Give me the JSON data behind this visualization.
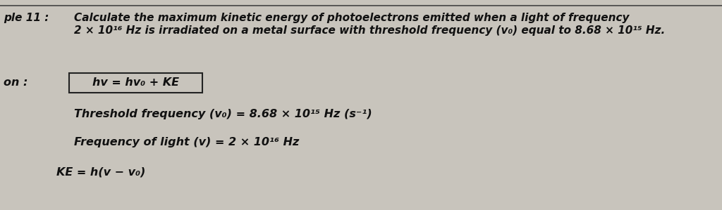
{
  "bg_color": "#c8c4bc",
  "text_color": "#111111",
  "title_prefix": "ple 11 :  ",
  "title_line1": "Calculate the maximum kinetic energy of photoelectrons emitted when a light of frequency",
  "title_line2": "2 × 10¹⁶ Hz is irradiated on a metal surface with threshold frequency (v₀) equal to 8.68 × 10¹⁵ Hz.",
  "solution_label": "on :",
  "formula_box": "hv = hv₀ + KE",
  "line1": "Threshold frequency (v₀) = 8.68 × 10¹⁵ Hz (s⁻¹)",
  "line2": "Frequency of light (v) = 2 × 10¹⁶ Hz",
  "line3": "KE = h(v − v₀)",
  "top_border_color": "#444444",
  "box_edge_color": "#222222",
  "font_size_title": 11.0,
  "font_size_body": 11.5
}
